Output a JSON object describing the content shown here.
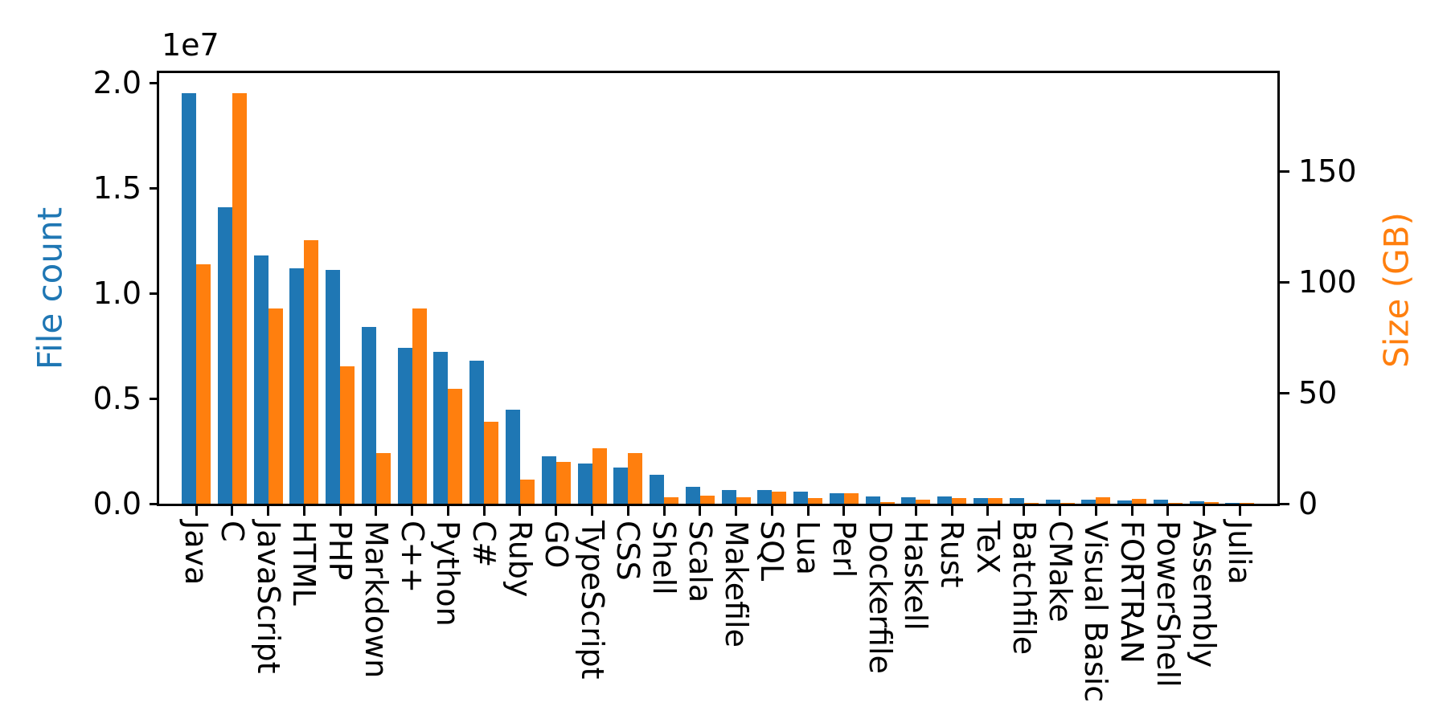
{
  "chart_data": {
    "type": "bar",
    "title": "",
    "grid": false,
    "legend": null,
    "categories": [
      "Java",
      "C",
      "JavaScript",
      "HTML",
      "PHP",
      "Markdown",
      "C++",
      "Python",
      "C#",
      "Ruby",
      "GO",
      "TypeScript",
      "CSS",
      "Shell",
      "Scala",
      "Makefile",
      "SQL",
      "Lua",
      "Perl",
      "Dockerfile",
      "Haskell",
      "Rust",
      "TeX",
      "Batchfile",
      "CMake",
      "Visual Basic",
      "FORTRAN",
      "PowerShell",
      "Assembly",
      "Julia"
    ],
    "series": [
      {
        "name": "File count",
        "axis": "left",
        "color": "#1f77b4",
        "values": [
          19500000,
          14100000,
          11800000,
          11200000,
          11100000,
          8400000,
          7400000,
          7200000,
          6800000,
          4470000,
          2250000,
          1900000,
          1720000,
          1370000,
          800000,
          650000,
          650000,
          570000,
          500000,
          340000,
          310000,
          340000,
          260000,
          270000,
          210000,
          210000,
          140000,
          200000,
          110000,
          40000
        ]
      },
      {
        "name": "Size (GB)",
        "axis": "right",
        "color": "#ff7f0e",
        "values": [
          108,
          185,
          88,
          119,
          62,
          23,
          88,
          52,
          37,
          11,
          19,
          25,
          23,
          2.9,
          3.6,
          2.9,
          5.4,
          2.5,
          4.7,
          0.7,
          1.8,
          2.5,
          2.4,
          0.3,
          0.3,
          2.8,
          2.2,
          0.4,
          0.7,
          0.2
        ]
      }
    ],
    "left_axis": {
      "label": "File count",
      "color": "#1f77b4",
      "offset_label": "1e7",
      "tick_labels": [
        "0.0",
        "0.5",
        "1.0",
        "1.5",
        "2.0"
      ],
      "tick_values": [
        0,
        5000000,
        10000000,
        15000000,
        20000000
      ],
      "ylim": [
        0,
        20460000
      ]
    },
    "right_axis": {
      "label": "Size (GB)",
      "color": "#ff7f0e",
      "tick_labels": [
        "0",
        "50",
        "100",
        "150"
      ],
      "tick_values": [
        0,
        50,
        100,
        150
      ],
      "ylim": [
        0,
        194.2
      ]
    }
  }
}
